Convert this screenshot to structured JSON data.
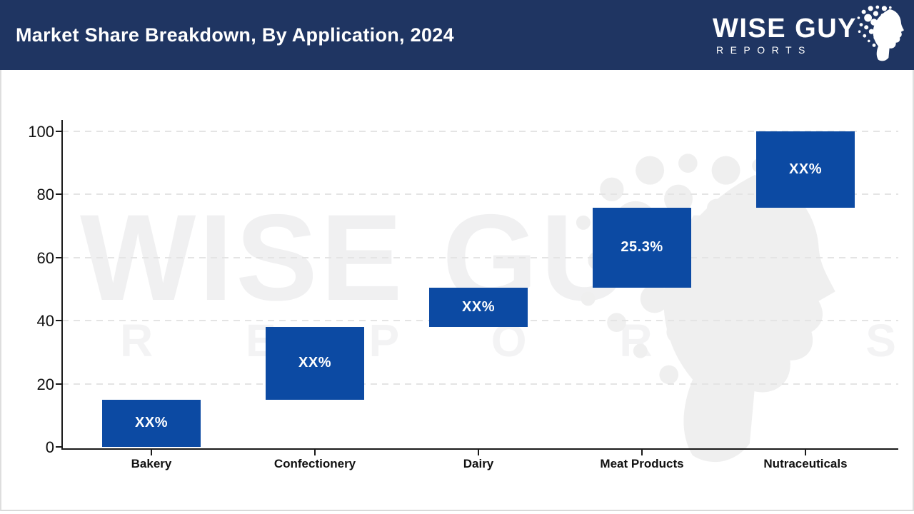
{
  "header": {
    "title": "Market Share Breakdown, By Application, 2024",
    "logo": {
      "line1": "WISE GUY",
      "line2": "REPORTS"
    }
  },
  "watermark": {
    "line1": "WISE GUY",
    "line2": "R E P O R T S"
  },
  "colors": {
    "header_bg": "#1f3562",
    "bar_blue": "#0c4aa3",
    "gridline": "#e4e4e4",
    "watermark_gray": "#f0f0f1"
  },
  "chart_data": {
    "type": "bar",
    "subtype": "waterfall",
    "title": "Market Share Breakdown, By Application, 2024",
    "categories": [
      "Bakery",
      "Confectionery",
      "Dairy",
      "Meat Products",
      "Nutraceuticals"
    ],
    "segments": [
      {
        "category": "Bakery",
        "start": 0,
        "end": 15,
        "label": "XX%"
      },
      {
        "category": "Confectionery",
        "start": 15,
        "end": 38,
        "label": "XX%"
      },
      {
        "category": "Dairy",
        "start": 38,
        "end": 50.5,
        "label": "XX%"
      },
      {
        "category": "Meat Products",
        "start": 50.5,
        "end": 75.8,
        "label": "25.3%"
      },
      {
        "category": "Nutraceuticals",
        "start": 75.8,
        "end": 100,
        "label": "XX%"
      }
    ],
    "values_visible": {
      "Meat Products": 25.3
    },
    "y_ticks": [
      0,
      20,
      40,
      60,
      80,
      100
    ],
    "ylim": [
      0,
      104
    ],
    "xlabel": "",
    "ylabel": "",
    "grid": true,
    "legend": false,
    "bar_color": "#0c4aa3"
  }
}
